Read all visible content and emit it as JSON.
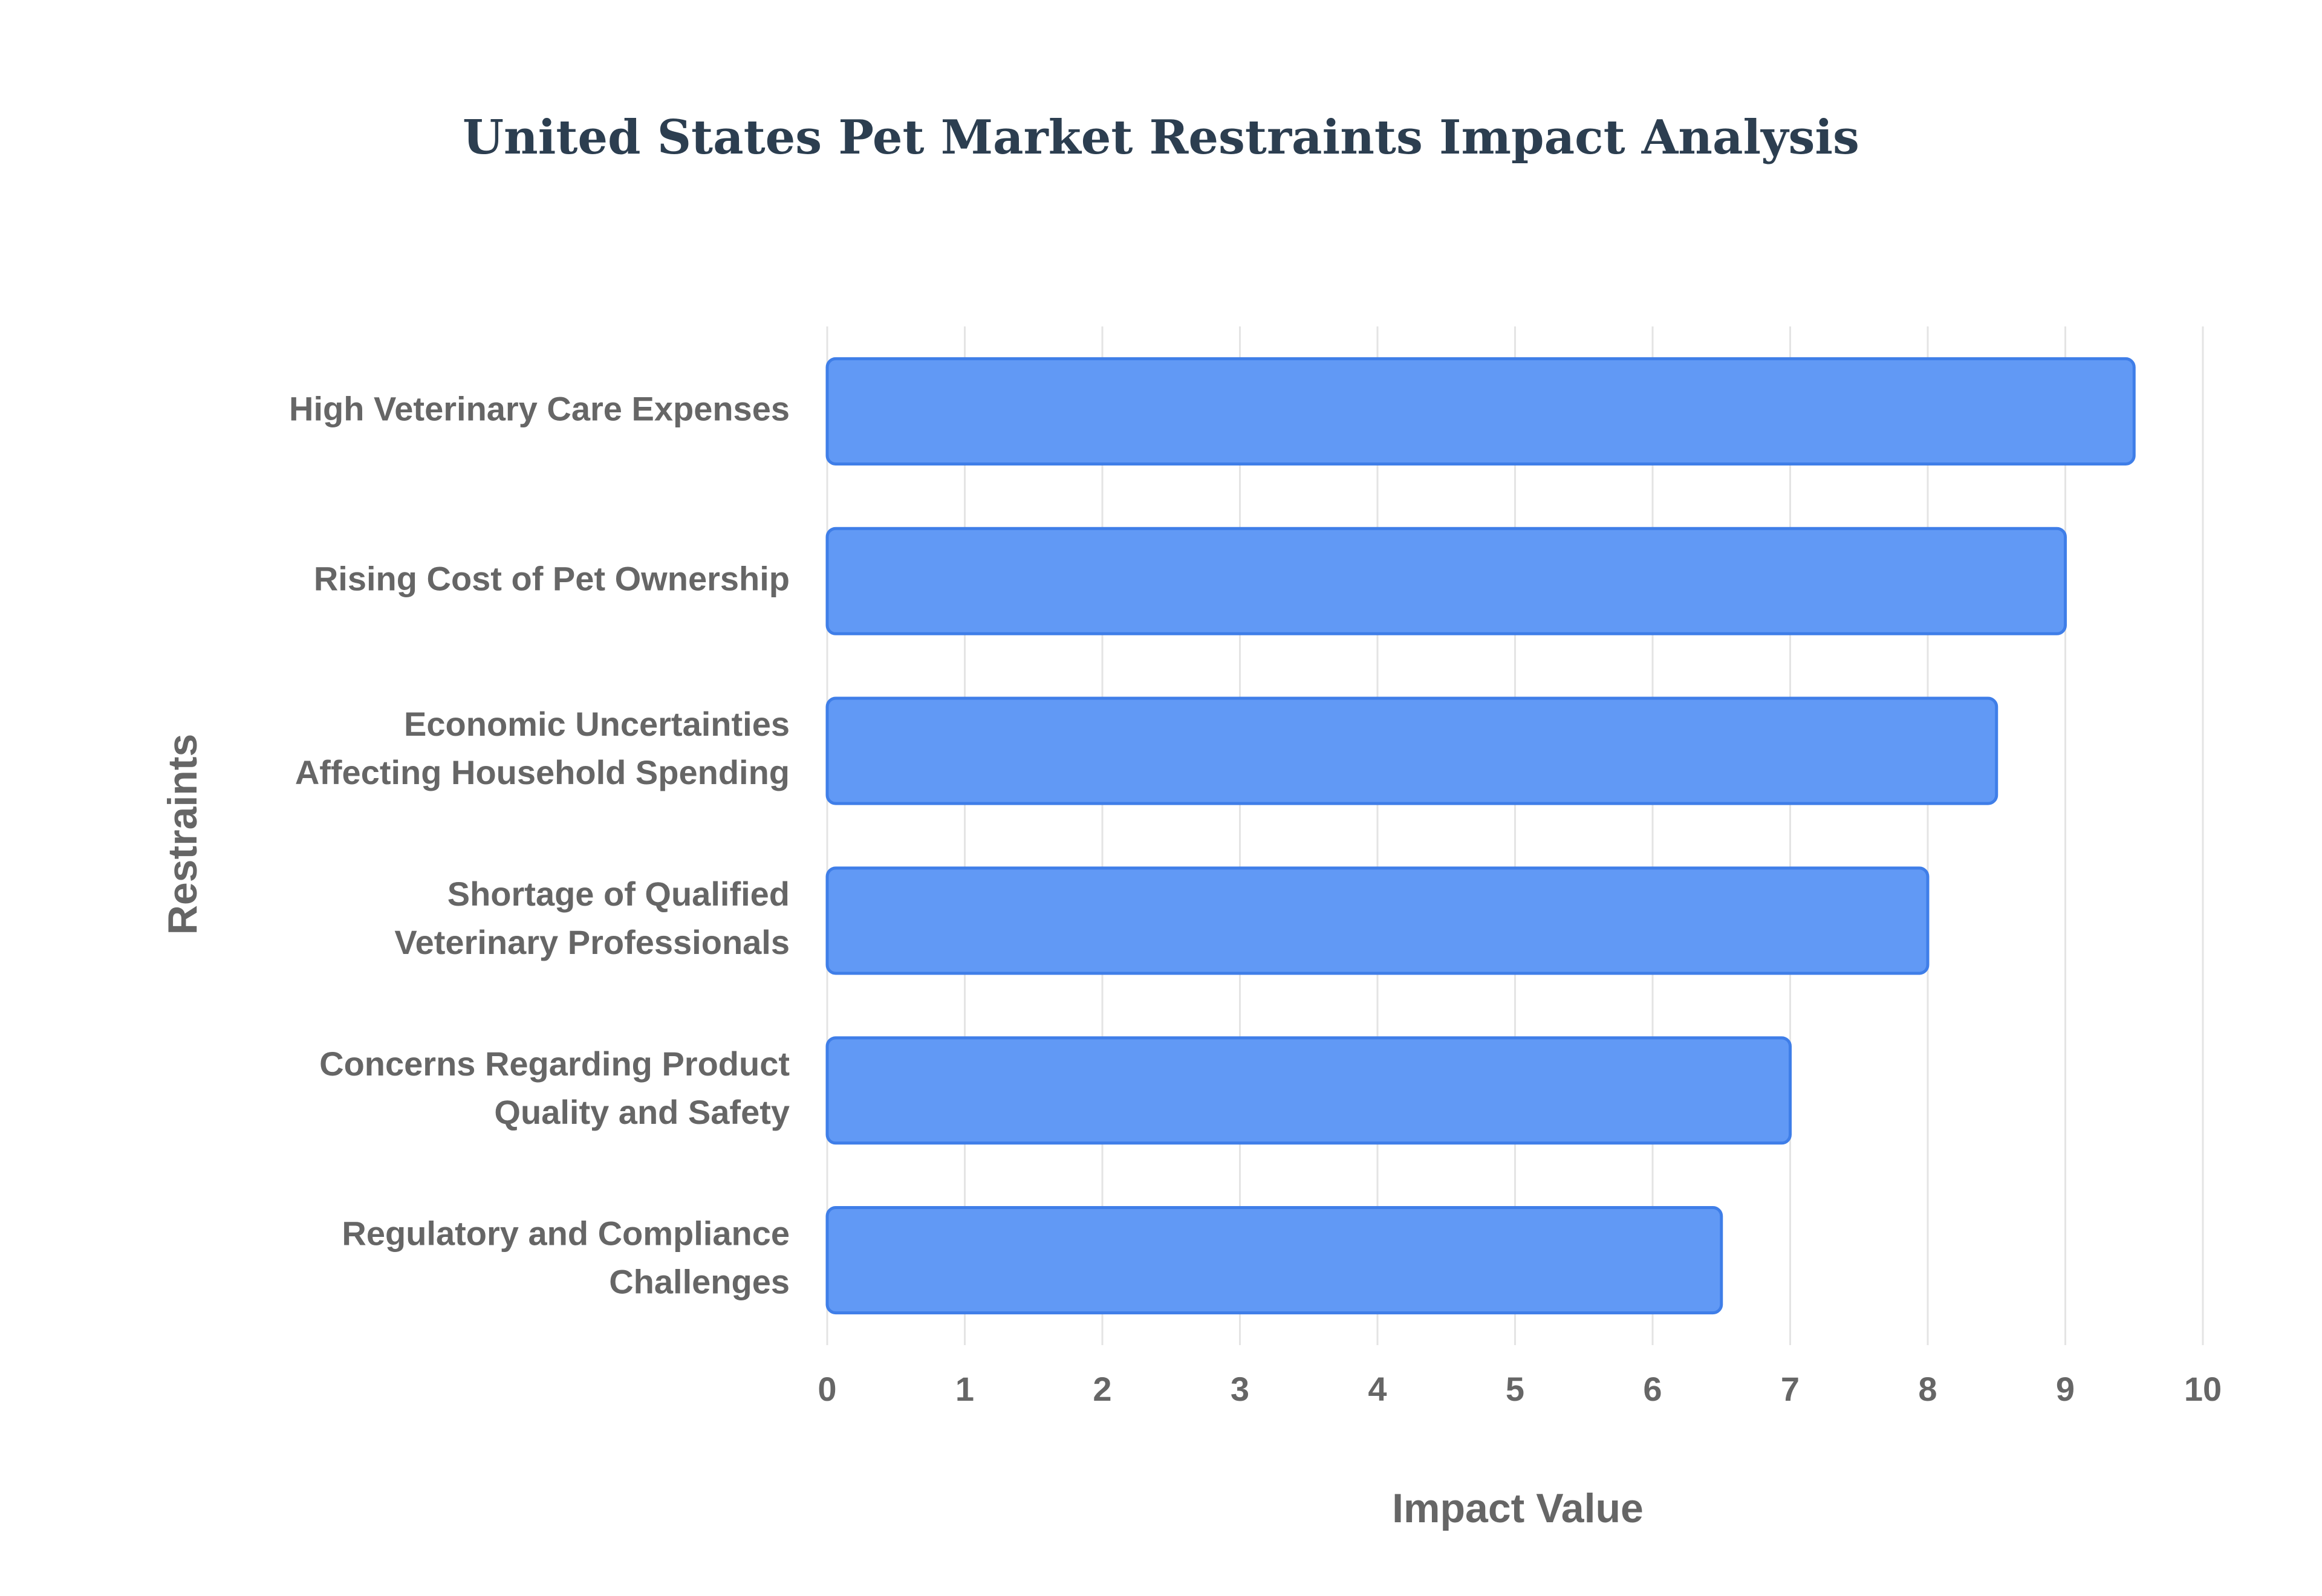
{
  "chart_data": {
    "type": "bar",
    "orientation": "horizontal",
    "title": "United States Pet Market Restraints Impact Analysis",
    "xlabel": "Impact Value",
    "ylabel": "Restraints",
    "categories": [
      [
        "High Veterinary Care Expenses"
      ],
      [
        "Rising Cost of Pet Ownership"
      ],
      [
        "Economic Uncertainties",
        "Affecting Household Spending"
      ],
      [
        "Shortage of Qualified",
        "Veterinary Professionals"
      ],
      [
        "Concerns Regarding Product",
        "Quality and Safety"
      ],
      [
        "Regulatory and Compliance",
        "Challenges"
      ]
    ],
    "values": [
      9.5,
      9,
      8.5,
      8,
      7,
      6.5
    ],
    "xlim": [
      0,
      10
    ],
    "xticks": [
      "0",
      "1",
      "2",
      "3",
      "4",
      "5",
      "6",
      "7",
      "8",
      "9",
      "10"
    ],
    "grid": true,
    "legend": "none",
    "colors": {
      "bar_fill": "#6199f5",
      "bar_border": "#3f7ee8",
      "title": "#2c3e50",
      "labels": "#666666",
      "grid": "#e4e4e4"
    }
  }
}
